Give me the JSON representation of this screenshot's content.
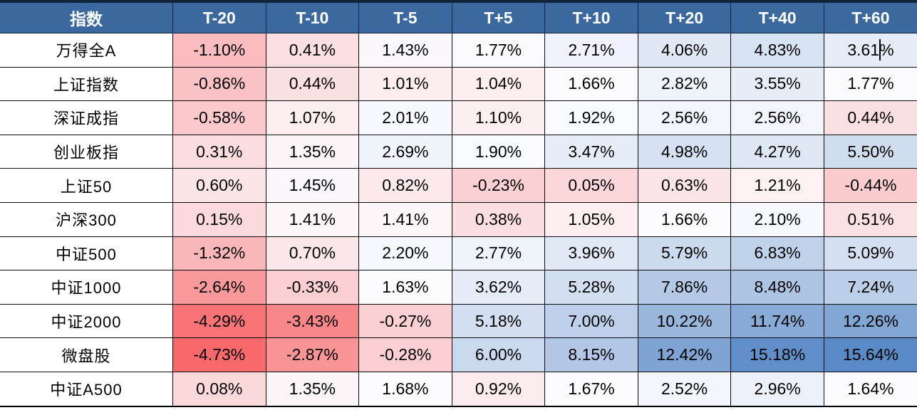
{
  "table_style": {
    "header_bg": "#3B689E",
    "header_text_color": "#FFFFFF",
    "cell_text_color": "#000000",
    "border_color": "#0B0B0B",
    "top_border_color": "#0E1B2C",
    "row_label_bg": "#FFFFFF"
  },
  "chart_data": {
    "type": "heatmap",
    "title": "",
    "corner_label": "指数",
    "columns": [
      "T-20",
      "T-10",
      "T-5",
      "T+5",
      "T+10",
      "T+20",
      "T+40",
      "T+60"
    ],
    "rows": [
      "万得全A",
      "上证指数",
      "深证成指",
      "创业板指",
      "上证50",
      "沪深300",
      "中证500",
      "中证1000",
      "中证2000",
      "微盘股",
      "中证A500"
    ],
    "values": [
      [
        -1.1,
        0.41,
        1.43,
        1.77,
        2.71,
        4.06,
        4.83,
        3.61
      ],
      [
        -0.86,
        0.44,
        1.01,
        1.04,
        1.66,
        2.82,
        3.55,
        1.77
      ],
      [
        -0.58,
        1.07,
        2.01,
        1.1,
        1.92,
        2.56,
        2.56,
        0.44
      ],
      [
        0.31,
        1.35,
        2.69,
        1.9,
        3.47,
        4.98,
        4.27,
        5.5
      ],
      [
        0.6,
        1.45,
        0.82,
        -0.23,
        0.05,
        0.63,
        1.21,
        -0.44
      ],
      [
        0.15,
        1.41,
        1.41,
        0.38,
        1.05,
        1.66,
        2.1,
        0.51
      ],
      [
        -1.32,
        0.7,
        2.2,
        2.77,
        3.96,
        5.79,
        6.83,
        5.09
      ],
      [
        -2.64,
        -0.33,
        1.63,
        3.62,
        5.28,
        7.86,
        8.48,
        7.24
      ],
      [
        -4.29,
        -3.43,
        -0.27,
        5.18,
        7.0,
        10.22,
        11.74,
        12.26
      ],
      [
        -4.73,
        -2.87,
        -0.28,
        6.0,
        8.15,
        12.42,
        15.18,
        15.64
      ],
      [
        0.08,
        1.35,
        1.68,
        0.92,
        1.67,
        2.52,
        2.96,
        1.64
      ]
    ],
    "value_format": "0.00%",
    "color_scale": {
      "type": "3-color-diverging",
      "min": -4.73,
      "mid": 1.665,
      "max": 15.64,
      "min_color": "#F8696B",
      "mid_color": "#FCFCFF",
      "max_color": "#5A8AC6"
    },
    "text_cursor": {
      "row": 0,
      "col": 7
    }
  }
}
